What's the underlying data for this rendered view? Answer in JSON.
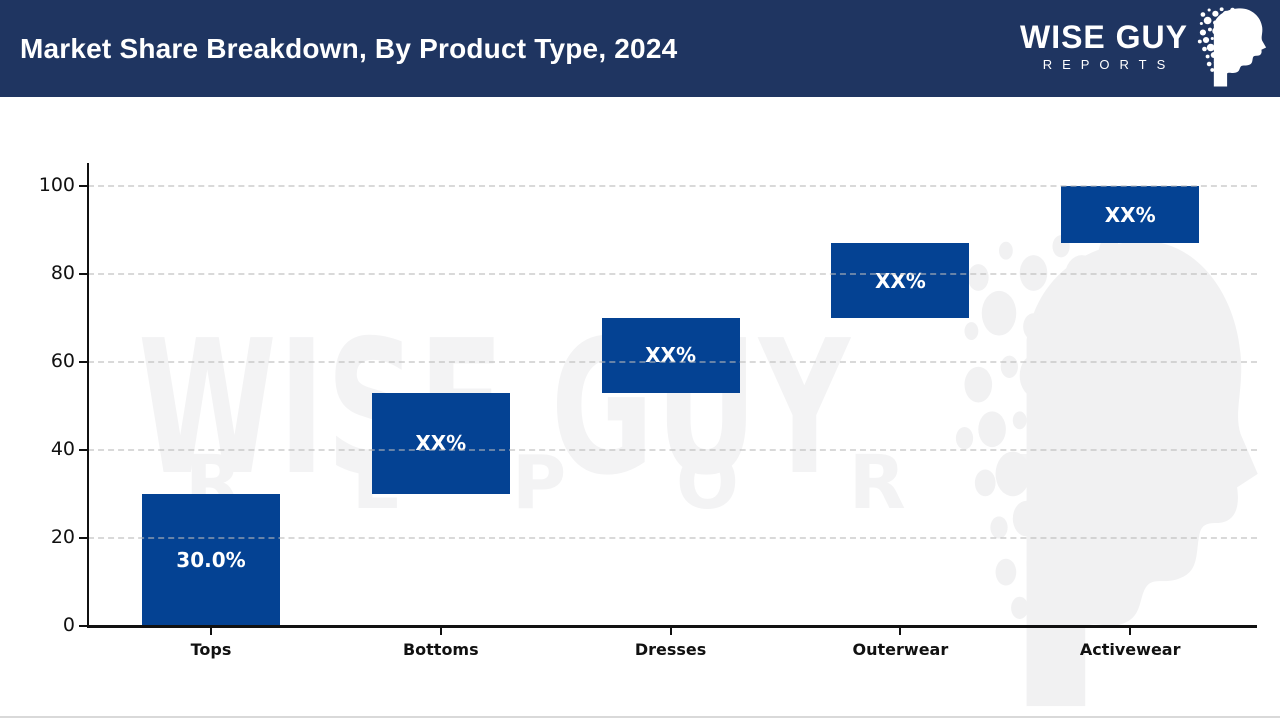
{
  "header": {
    "title": "Market Share Breakdown, By Product Type, 2024",
    "logo": {
      "brand_line1": "WISE GUY",
      "brand_line2": "REPORTS"
    }
  },
  "watermark": {
    "line1": "WISE GUY",
    "line2": "R E P O R T S"
  },
  "chart_data": {
    "type": "bar",
    "subtype": "waterfall",
    "title": "Market Share Breakdown, By Product Type, 2024",
    "categories": [
      "Tops",
      "Bottoms",
      "Dresses",
      "Outerwear",
      "Activewear"
    ],
    "segments": [
      {
        "category": "Tops",
        "start": 0,
        "end": 30,
        "value": 30,
        "label": "30.0%"
      },
      {
        "category": "Bottoms",
        "start": 30,
        "end": 53,
        "value": 23,
        "label": "XX%"
      },
      {
        "category": "Dresses",
        "start": 53,
        "end": 70,
        "value": 17,
        "label": "XX%"
      },
      {
        "category": "Outerwear",
        "start": 70,
        "end": 87,
        "value": 17,
        "label": "XX%"
      },
      {
        "category": "Activewear",
        "start": 87,
        "end": 100,
        "value": 13,
        "label": "XX%"
      }
    ],
    "y_ticks": [
      0,
      20,
      40,
      60,
      80,
      100
    ],
    "ylim": [
      0,
      105
    ],
    "xlabel": "",
    "ylabel": "",
    "grid": "horizontal-dashed",
    "legend": "none"
  },
  "colors": {
    "header_bg": "#1f3561",
    "bar": "#044293",
    "bar_label": "#ffffff",
    "axis": "#111111",
    "gridline": "#bbbbbb",
    "watermark": "#f3f3f4"
  }
}
